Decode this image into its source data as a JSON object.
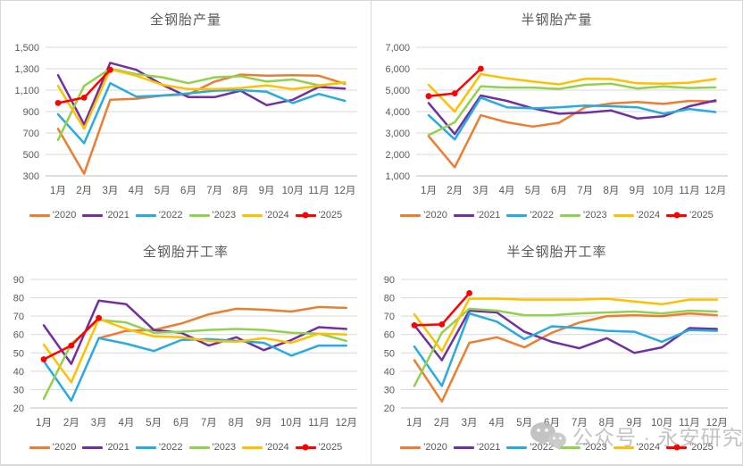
{
  "watermark": {
    "icon": "wechat-icon",
    "text": "公众号 · 永安研究",
    "color": "#b9b9b9"
  },
  "legend": {
    "items": [
      {
        "label": "'2020",
        "color": "#ED7D31",
        "marker": false
      },
      {
        "label": "'2021",
        "color": "#7030A0",
        "marker": false
      },
      {
        "label": "'2022",
        "color": "#29ABE2",
        "marker": false
      },
      {
        "label": "'2023",
        "color": "#92D050",
        "marker": false
      },
      {
        "label": "'2024",
        "color": "#FFC000",
        "marker": false
      },
      {
        "label": "'2025",
        "color": "#FF0000",
        "marker": true
      }
    ]
  },
  "chart_data": [
    {
      "type": "line",
      "title": "全钢胎产量",
      "x_categories": [
        "1月",
        "2月",
        "3月",
        "4月",
        "5月",
        "6月",
        "7月",
        "8月",
        "9月",
        "10月",
        "11月",
        "12月"
      ],
      "ylim": [
        300,
        1500
      ],
      "ytick_step": 200,
      "yticks": [
        "300",
        "500",
        "700",
        "900",
        "1,100",
        "1,300",
        "1,500"
      ],
      "grid": true,
      "legend_position": "bottom",
      "series": [
        {
          "name": "'2020",
          "color": "#ED7D31",
          "marker": false,
          "values": [
            740,
            320,
            1010,
            1020,
            1050,
            1060,
            1180,
            1245,
            1235,
            1240,
            1235,
            1160
          ]
        },
        {
          "name": "'2021",
          "color": "#7030A0",
          "marker": false,
          "values": [
            1240,
            780,
            1355,
            1290,
            1150,
            1035,
            1035,
            1095,
            960,
            1010,
            1130,
            1115
          ]
        },
        {
          "name": "'2022",
          "color": "#29ABE2",
          "marker": false,
          "values": [
            875,
            605,
            1165,
            1040,
            1050,
            1070,
            1095,
            1100,
            1085,
            980,
            1065,
            1000
          ]
        },
        {
          "name": "'2023",
          "color": "#92D050",
          "marker": false,
          "values": [
            635,
            1140,
            1300,
            1250,
            1220,
            1165,
            1220,
            1230,
            1180,
            1200,
            1145,
            1170
          ]
        },
        {
          "name": "'2024",
          "color": "#FFC000",
          "marker": false,
          "values": [
            1140,
            740,
            1295,
            1235,
            1150,
            1110,
            1110,
            1120,
            1145,
            1110,
            1140,
            1175
          ]
        },
        {
          "name": "'2025",
          "color": "#FF0000",
          "marker": true,
          "values": [
            980,
            1030,
            1290
          ]
        }
      ]
    },
    {
      "type": "line",
      "title": "半钢胎产量",
      "x_categories": [
        "1月",
        "2月",
        "3月",
        "4月",
        "5月",
        "6月",
        "7月",
        "8月",
        "9月",
        "10月",
        "11月",
        "12月"
      ],
      "ylim": [
        1000,
        7000
      ],
      "ytick_step": 1000,
      "yticks": [
        "1,000",
        "2,000",
        "3,000",
        "4,000",
        "5,000",
        "6,000",
        "7,000"
      ],
      "grid": true,
      "legend_position": "bottom",
      "series": [
        {
          "name": "'2020",
          "color": "#ED7D31",
          "marker": false,
          "values": [
            2850,
            1400,
            3830,
            3500,
            3300,
            3480,
            4200,
            4380,
            4450,
            4360,
            4500,
            4470
          ]
        },
        {
          "name": "'2021",
          "color": "#7030A0",
          "marker": false,
          "values": [
            4400,
            2950,
            4750,
            4500,
            4150,
            3900,
            3950,
            4050,
            3680,
            3780,
            4250,
            4520
          ]
        },
        {
          "name": "'2022",
          "color": "#29ABE2",
          "marker": false,
          "values": [
            3830,
            2700,
            4650,
            4200,
            4150,
            4200,
            4280,
            4250,
            4200,
            3900,
            4120,
            3980
          ]
        },
        {
          "name": "'2023",
          "color": "#92D050",
          "marker": false,
          "values": [
            2900,
            3500,
            5180,
            5120,
            5120,
            5060,
            5250,
            5300,
            5080,
            5180,
            5100,
            5130
          ]
        },
        {
          "name": "'2024",
          "color": "#FFC000",
          "marker": false,
          "values": [
            5250,
            4000,
            5750,
            5550,
            5400,
            5270,
            5530,
            5520,
            5320,
            5300,
            5350,
            5520
          ]
        },
        {
          "name": "'2025",
          "color": "#FF0000",
          "marker": true,
          "values": [
            4720,
            4850,
            6000
          ]
        }
      ]
    },
    {
      "type": "line",
      "title": "全钢胎开工率",
      "x_categories": [
        "1月",
        "2月",
        "3月",
        "4月",
        "5月",
        "6月",
        "7月",
        "8月",
        "9月",
        "10月",
        "11月",
        "12月"
      ],
      "ylim": [
        20,
        90
      ],
      "ytick_step": 10,
      "yticks": [
        "20",
        "30",
        "40",
        "50",
        "60",
        "70",
        "80",
        "90"
      ],
      "grid": true,
      "legend_position": "bottom",
      "series": [
        {
          "name": "'2020",
          "color": "#ED7D31",
          "marker": false,
          "values": [
            null,
            null,
            58,
            62,
            62.5,
            66,
            71,
            74,
            73.5,
            72.5,
            75,
            74.5
          ]
        },
        {
          "name": "'2021",
          "color": "#7030A0",
          "marker": false,
          "values": [
            65,
            44,
            78.5,
            76.5,
            62.5,
            61,
            54,
            58.5,
            51.5,
            57,
            64,
            63
          ]
        },
        {
          "name": "'2022",
          "color": "#29ABE2",
          "marker": false,
          "values": [
            45.5,
            24,
            58,
            55,
            51,
            57,
            57.5,
            56.5,
            55.5,
            48.5,
            54,
            54
          ]
        },
        {
          "name": "'2023",
          "color": "#92D050",
          "marker": false,
          "values": [
            25,
            55,
            68,
            66.5,
            61,
            61.5,
            62.5,
            63,
            62.5,
            61,
            60.5,
            56.5
          ]
        },
        {
          "name": "'2024",
          "color": "#FFC000",
          "marker": false,
          "values": [
            54.5,
            34,
            68.5,
            63,
            59,
            58.5,
            56.5,
            56,
            58,
            55.5,
            60.5,
            60
          ]
        },
        {
          "name": "'2025",
          "color": "#FF0000",
          "marker": true,
          "values": [
            46.5,
            54,
            69
          ]
        }
      ]
    },
    {
      "type": "line",
      "title": "半全钢胎开工率",
      "x_categories": [
        "1月",
        "2月",
        "3月",
        "4月",
        "5月",
        "6月",
        "7月",
        "8月",
        "9月",
        "10月",
        "11月",
        "12月"
      ],
      "ylim": [
        20,
        90
      ],
      "ytick_step": 10,
      "yticks": [
        "20",
        "30",
        "40",
        "50",
        "60",
        "70",
        "80",
        "90"
      ],
      "grid": true,
      "legend_position": "bottom",
      "series": [
        {
          "name": "'2020",
          "color": "#ED7D31",
          "marker": false,
          "values": [
            46,
            23.5,
            55.5,
            58.5,
            53,
            61,
            66.5,
            70,
            70.5,
            70,
            71.5,
            70.5
          ]
        },
        {
          "name": "'2021",
          "color": "#7030A0",
          "marker": false,
          "values": [
            65,
            46,
            73,
            72,
            61.5,
            56,
            52.5,
            58,
            50,
            53,
            63.5,
            63
          ]
        },
        {
          "name": "'2022",
          "color": "#29ABE2",
          "marker": false,
          "values": [
            53.5,
            32,
            71.5,
            67,
            57.5,
            64.5,
            63.5,
            62,
            61.5,
            56,
            62.5,
            62
          ]
        },
        {
          "name": "'2023",
          "color": "#92D050",
          "marker": false,
          "values": [
            32,
            61,
            74,
            73,
            70.5,
            70.5,
            71.5,
            72,
            72.5,
            71.5,
            73,
            72.5
          ]
        },
        {
          "name": "'2024",
          "color": "#FFC000",
          "marker": false,
          "values": [
            71,
            51,
            79.5,
            79.5,
            79,
            79,
            79,
            79.5,
            78,
            76.5,
            79,
            79
          ]
        },
        {
          "name": "'2025",
          "color": "#FF0000",
          "marker": true,
          "values": [
            65,
            65.5,
            82.5
          ]
        }
      ]
    }
  ]
}
